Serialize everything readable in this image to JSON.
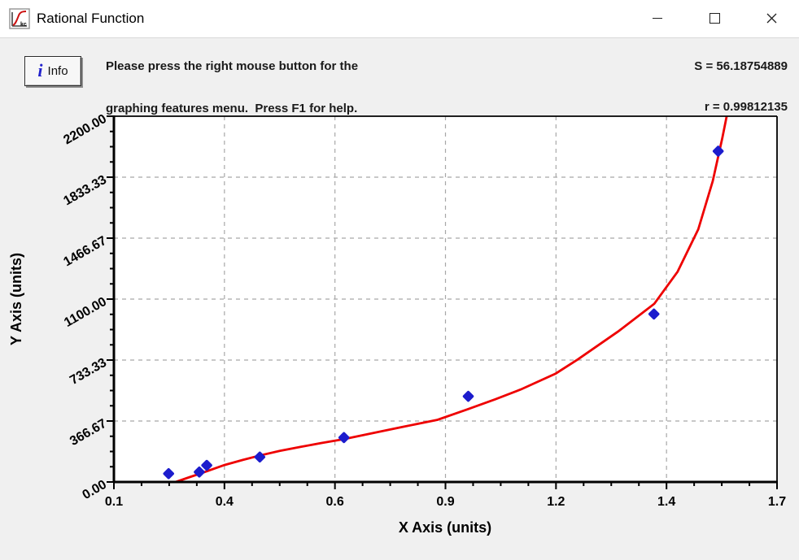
{
  "window": {
    "title": "Rational Function",
    "icons": {
      "app": "curve-plot-icon",
      "minimize": "minimize-icon",
      "maximize": "maximize-icon",
      "close": "close-icon"
    }
  },
  "toolbar": {
    "info_button_label": "Info",
    "info_icon_glyph": "i",
    "instructions_line1": "Please press the right mouse button for the",
    "instructions_line2": "graphing features menu.  Press F1 for help.",
    "stat_s": "S = 56.18754889",
    "stat_r": "r = 0.99812135"
  },
  "chart_data": {
    "type": "scatter",
    "title": "",
    "xlabel": "X Axis (units)",
    "ylabel": "Y Axis (units)",
    "xlim": [
      0.1,
      1.7
    ],
    "ylim": [
      0,
      2200
    ],
    "grid": "dashed-gray-at-major-ticks",
    "legend": "none",
    "x_ticks": {
      "values": [
        0.1,
        0.36667,
        0.63333,
        0.9,
        1.16667,
        1.43333,
        1.7
      ],
      "labels": [
        "0.1",
        "0.4",
        "0.6",
        "0.9",
        "1.2",
        "1.4",
        "1.7"
      ],
      "minor_divisions": 4
    },
    "y_ticks": {
      "values": [
        0,
        366.67,
        733.33,
        1100,
        1466.67,
        1833.33,
        2200
      ],
      "labels": [
        "0.00",
        "366.67",
        "733.33",
        "1100.00",
        "1466.67",
        "1833.33",
        "2200.00"
      ],
      "minor_divisions": 4,
      "label_rotation_deg": -30
    },
    "series": [
      {
        "name": "observed-data",
        "type": "scatter",
        "marker": "diamond",
        "color": "#1c1ccd",
        "points": [
          [
            0.232,
            50
          ],
          [
            0.306,
            60
          ],
          [
            0.324,
            100
          ],
          [
            0.452,
            150
          ],
          [
            0.655,
            267
          ],
          [
            0.955,
            515
          ],
          [
            1.403,
            1010
          ],
          [
            1.558,
            1990
          ]
        ]
      },
      {
        "name": "rational-function-fit",
        "type": "line",
        "color": "#ee0000",
        "points": [
          [
            0.249,
            0
          ],
          [
            0.28,
            27
          ],
          [
            0.316,
            57
          ],
          [
            0.367,
            102
          ],
          [
            0.41,
            132
          ],
          [
            0.453,
            160
          ],
          [
            0.5,
            187
          ],
          [
            0.551,
            211
          ],
          [
            0.6,
            234
          ],
          [
            0.654,
            257
          ],
          [
            0.7,
            281
          ],
          [
            0.748,
            306
          ],
          [
            0.8,
            333
          ],
          [
            0.881,
            374
          ],
          [
            0.952,
            436
          ],
          [
            1.02,
            497
          ],
          [
            1.082,
            557
          ],
          [
            1.166,
            652
          ],
          [
            1.219,
            737
          ],
          [
            1.317,
            906
          ],
          [
            1.404,
            1072
          ],
          [
            1.46,
            1265
          ],
          [
            1.51,
            1520
          ],
          [
            1.545,
            1810
          ],
          [
            1.568,
            2070
          ],
          [
            1.585,
            2280
          ]
        ]
      }
    ],
    "fit_statistics": {
      "S": 56.18754889,
      "r": 0.99812135
    }
  },
  "colors": {
    "curve": "#ee0000",
    "marker": "#1c1ccd",
    "grid": "#a8a8a8",
    "axis": "#000000",
    "plot_background": "#ffffff",
    "window_background": "#f0f0f0",
    "titlebar_background": "#ffffff"
  }
}
